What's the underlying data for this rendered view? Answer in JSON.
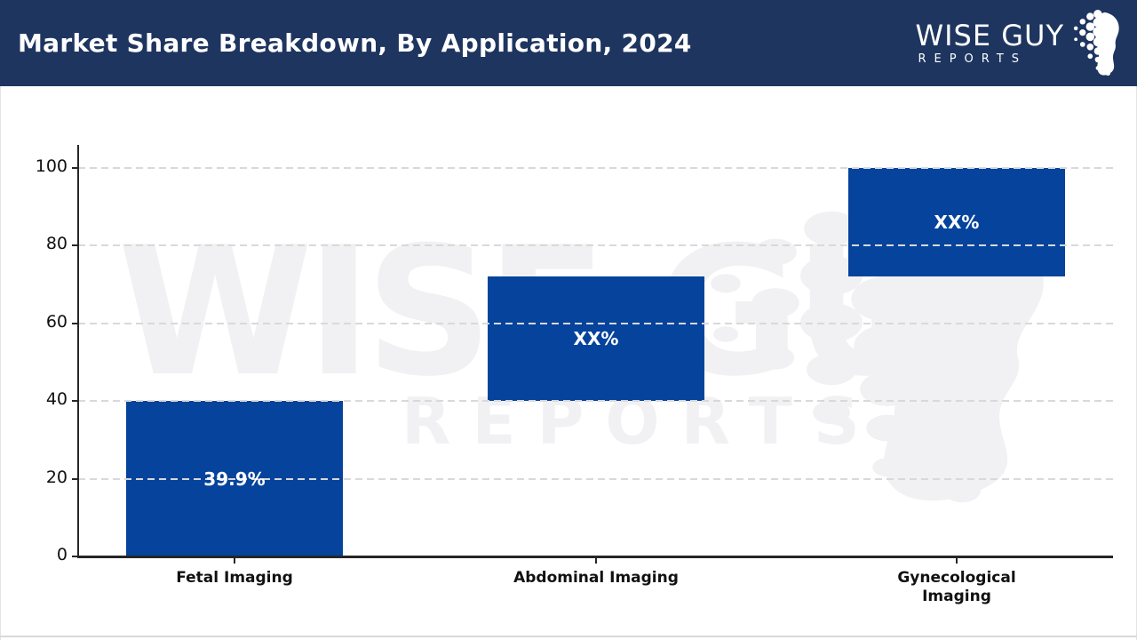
{
  "header": {
    "title": "Market Share Breakdown, By Application, 2024",
    "logo": {
      "name": "WISE GUY",
      "tagline": "REPORTS"
    }
  },
  "watermark": {
    "brand": "WISE GUY",
    "tagline": "REPORTS"
  },
  "colors": {
    "header_bg": "#1e355f",
    "bar": "#05439c",
    "grid": "#d9d9d9",
    "axis": "#262626",
    "text": "#111111",
    "watermark": "#f1f1f3",
    "bar_label": "#ffffff"
  },
  "chart_data": {
    "type": "bar",
    "subtype": "floating-segment-waterfall",
    "title": "Market Share Breakdown, By Application, 2024",
    "categories": [
      "Fetal Imaging",
      "Abdominal Imaging",
      "Gynecological Imaging"
    ],
    "segments": [
      {
        "category": "Fetal Imaging",
        "start": 0,
        "end": 39.9,
        "value_label": "39.9%"
      },
      {
        "category": "Abdominal Imaging",
        "start": 39.9,
        "end": 72,
        "value_label": "XX%"
      },
      {
        "category": "Gynecological Imaging",
        "start": 72,
        "end": 100,
        "value_label": "XX%"
      }
    ],
    "xlabel": "",
    "ylabel": "",
    "yticks": [
      0,
      20,
      40,
      60,
      80,
      100
    ],
    "ylim": [
      0,
      105.8
    ],
    "grid": "horizontal-dashed",
    "legend": "none",
    "bar_color": "#05439c",
    "label_color": "#ffffff"
  }
}
